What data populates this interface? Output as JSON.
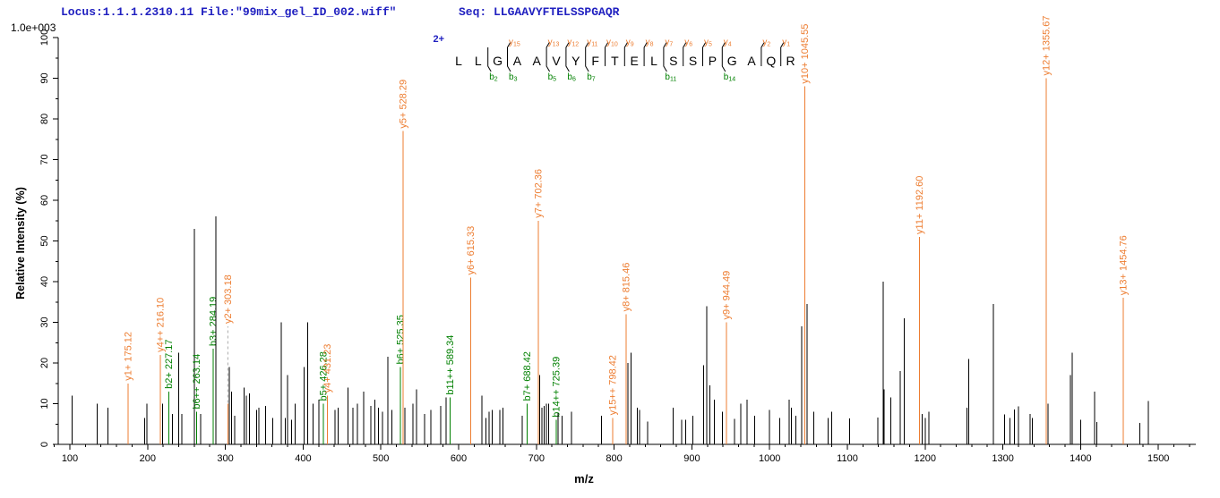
{
  "header": {
    "locus_file": "Locus:1.1.1.2310.11 File:\"99mix_gel_ID_002.wiff\"",
    "seq_label": "Seq: LLGAAVYFTELSSPGAQR",
    "scale": "1.0e+003"
  },
  "chart_data": {
    "type": "bar",
    "subtype": "ms2-fragment-spectrum",
    "xlabel": "m/z",
    "ylabel": "Relative  Intensity (%)",
    "xlim": [
      76,
      1554
    ],
    "ylim": [
      0,
      100
    ],
    "x_ticks": [
      100,
      200,
      300,
      400,
      500,
      600,
      700,
      800,
      900,
      1000,
      1100,
      1200,
      1300,
      1400,
      1500
    ],
    "x_minor_step": 20,
    "y_ticks": [
      0,
      10,
      20,
      30,
      40,
      50,
      60,
      70,
      80,
      90,
      100
    ],
    "y_minor_step": 5,
    "grid": false,
    "legend": false,
    "colors": {
      "k": "#000000",
      "o": "#ED7D31",
      "g": "#008000",
      "blue": "#2020C0",
      "leader": "#AAAAAA"
    },
    "sequence_map": {
      "precursor_charge": "2+",
      "sequence": "LLGAAVYFTELSSPGAQR",
      "cleavages": [
        {
          "after": 2,
          "b": 2
        },
        {
          "after": 3,
          "y": 15,
          "b": 3
        },
        {
          "after": 5,
          "y": 13,
          "b": 5
        },
        {
          "after": 6,
          "y": 12,
          "b": 6
        },
        {
          "after": 7,
          "y": 11,
          "b": 7
        },
        {
          "after": 8,
          "y": 10
        },
        {
          "after": 9,
          "y": 9
        },
        {
          "after": 10,
          "y": 8
        },
        {
          "after": 11,
          "y": 7,
          "b": 11
        },
        {
          "after": 12,
          "y": 6
        },
        {
          "after": 13,
          "y": 5
        },
        {
          "after": 14,
          "y": 4,
          "b": 14
        },
        {
          "after": 16,
          "y": 2
        },
        {
          "after": 17,
          "y": 1
        }
      ]
    },
    "peaks": [
      [
        103,
        12
      ],
      [
        135,
        10
      ],
      [
        149,
        9
      ],
      [
        175.12,
        15,
        "o",
        "y1+ 175.12"
      ],
      [
        196,
        6.5
      ],
      [
        199,
        10
      ],
      [
        216.1,
        22,
        "o",
        "y4++ 216.10"
      ],
      [
        219,
        10
      ],
      [
        227.17,
        13,
        "g",
        "b2+ 227.17"
      ],
      [
        232,
        7.5
      ],
      [
        240,
        22.5
      ],
      [
        244,
        7.5
      ],
      [
        260,
        53
      ],
      [
        263.14,
        8,
        "g",
        "b6++ 263.14"
      ],
      [
        268,
        7.5
      ],
      [
        284.19,
        23.5,
        "g",
        "b3+ 284.19"
      ],
      [
        288,
        56
      ],
      [
        303.18,
        10,
        "o",
        "y2+ 303.18",
        29
      ],
      [
        305,
        19
      ],
      [
        308,
        13
      ],
      [
        312,
        7
      ],
      [
        324,
        14
      ],
      [
        327,
        12
      ],
      [
        331,
        12.5
      ],
      [
        340,
        8.5
      ],
      [
        343,
        9
      ],
      [
        352,
        9.5
      ],
      [
        361,
        6.5
      ],
      [
        372,
        30
      ],
      [
        377,
        6.5
      ],
      [
        380,
        17
      ],
      [
        385,
        6
      ],
      [
        390,
        10
      ],
      [
        401,
        19
      ],
      [
        406,
        30
      ],
      [
        413,
        10
      ],
      [
        420,
        11
      ],
      [
        426.28,
        10,
        "g",
        "b5+ 426.28"
      ],
      [
        431.23,
        12,
        "o",
        "y4+ 431.23"
      ],
      [
        441,
        8.5
      ],
      [
        445,
        9
      ],
      [
        458,
        14
      ],
      [
        464,
        9
      ],
      [
        470,
        10
      ],
      [
        478,
        13
      ],
      [
        487,
        9.5
      ],
      [
        492,
        11
      ],
      [
        497,
        9
      ],
      [
        502,
        8
      ],
      [
        509,
        21.5
      ],
      [
        514,
        8.5
      ],
      [
        525.35,
        19,
        "g",
        "b6+ 525.35"
      ],
      [
        528.29,
        77,
        "o",
        "y5+ 528.29"
      ],
      [
        531,
        9
      ],
      [
        541,
        10
      ],
      [
        546,
        13.5
      ],
      [
        556,
        7.5
      ],
      [
        564,
        8.5
      ],
      [
        577,
        9.5
      ],
      [
        584,
        11.5
      ],
      [
        589.34,
        11.5,
        "g",
        "b11++ 589.34"
      ],
      [
        615.33,
        41,
        "o",
        "y6+ 615.33"
      ],
      [
        630,
        12
      ],
      [
        635,
        6.5
      ],
      [
        639,
        8
      ],
      [
        643,
        8.5
      ],
      [
        653,
        8.5
      ],
      [
        657,
        9
      ],
      [
        682,
        7
      ],
      [
        688.42,
        10,
        "g",
        "b7+ 688.42"
      ],
      [
        702.36,
        55,
        "o",
        "y7+ 702.36"
      ],
      [
        704.5,
        17
      ],
      [
        707,
        9
      ],
      [
        710,
        9.5
      ],
      [
        713,
        10
      ],
      [
        716,
        10
      ],
      [
        725.39,
        6,
        "g",
        "b14++ 725.39"
      ],
      [
        728,
        7.7
      ],
      [
        733,
        7
      ],
      [
        745,
        8
      ],
      [
        784,
        7
      ],
      [
        798.42,
        6.5,
        "o",
        "y15++ 798.42"
      ],
      [
        815.46,
        32,
        "o",
        "y8+ 815.46"
      ],
      [
        818,
        20
      ],
      [
        822,
        22.5
      ],
      [
        830,
        9
      ],
      [
        833,
        8.5
      ],
      [
        843,
        5.6
      ],
      [
        876,
        9
      ],
      [
        887,
        6
      ],
      [
        892,
        6
      ],
      [
        901,
        7
      ],
      [
        915,
        19.5
      ],
      [
        919,
        34
      ],
      [
        923,
        14.5
      ],
      [
        929,
        11
      ],
      [
        939,
        8
      ],
      [
        944.49,
        30,
        "o",
        "y9+ 944.49"
      ],
      [
        955,
        6.3
      ],
      [
        963,
        10
      ],
      [
        971,
        11
      ],
      [
        981,
        7
      ],
      [
        1000,
        8.5
      ],
      [
        1013,
        6.5
      ],
      [
        1025,
        11
      ],
      [
        1028,
        9
      ],
      [
        1034,
        7
      ],
      [
        1041,
        29
      ],
      [
        1045.55,
        88,
        "o",
        "y10+ 1045.55"
      ],
      [
        1048,
        34.5
      ],
      [
        1057,
        8
      ],
      [
        1075,
        6.5
      ],
      [
        1080,
        8
      ],
      [
        1103,
        6.4
      ],
      [
        1139,
        6.6
      ],
      [
        1146,
        40
      ],
      [
        1147,
        13.5
      ],
      [
        1156,
        11.5
      ],
      [
        1168,
        18
      ],
      [
        1173,
        31
      ],
      [
        1192.6,
        51,
        "o",
        "y11+ 1192.60"
      ],
      [
        1196,
        7.5
      ],
      [
        1200,
        6.5
      ],
      [
        1205,
        8
      ],
      [
        1254,
        9
      ],
      [
        1256,
        21
      ],
      [
        1288,
        34.5
      ],
      [
        1302,
        7.4
      ],
      [
        1309,
        6.5
      ],
      [
        1315,
        8.6
      ],
      [
        1320,
        9.3
      ],
      [
        1335,
        7.5
      ],
      [
        1338,
        6.5
      ],
      [
        1355.67,
        90,
        "o",
        "y12+ 1355.67"
      ],
      [
        1358,
        10
      ],
      [
        1387,
        17
      ],
      [
        1389,
        22.5
      ],
      [
        1400,
        6
      ],
      [
        1418,
        13
      ],
      [
        1421,
        5.5
      ],
      [
        1454.76,
        36,
        "o",
        "y13+ 1454.76"
      ],
      [
        1476,
        5.3
      ],
      [
        1487,
        10.7
      ]
    ]
  }
}
